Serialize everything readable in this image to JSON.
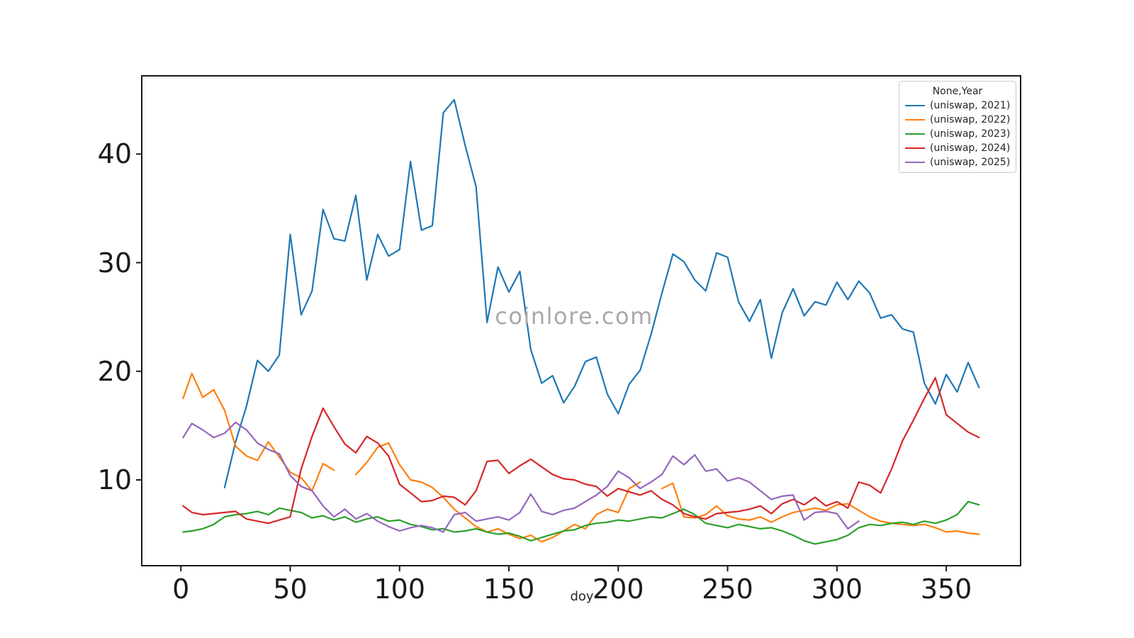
{
  "watermark": "coinlore.com",
  "colors": {
    "axis": "#1a1a1a",
    "watermark": "#a9a9a9",
    "legend_border": "#cccccc",
    "series_2021": "#1f77b4",
    "series_2022": "#ff7f0e",
    "series_2023": "#2ca02c",
    "series_2024": "#d62728",
    "series_2025": "#9467bd"
  },
  "chart_data": {
    "type": "line",
    "title": "",
    "xlabel": "doy",
    "ylabel": "",
    "grid": false,
    "xlim": [
      -17.9,
      384.0
    ],
    "ylim": [
      2.1,
      47.2
    ],
    "x_ticks": [
      0,
      50,
      100,
      150,
      200,
      250,
      300,
      350
    ],
    "y_ticks": [
      10,
      20,
      30,
      40
    ],
    "legend": {
      "title": "None,Year",
      "position": "upper right"
    },
    "x": [
      1,
      5,
      10,
      15,
      20,
      25,
      30,
      35,
      40,
      45,
      50,
      55,
      60,
      65,
      70,
      75,
      80,
      85,
      90,
      95,
      100,
      105,
      110,
      115,
      120,
      125,
      130,
      135,
      140,
      145,
      150,
      155,
      160,
      165,
      170,
      175,
      180,
      185,
      190,
      195,
      200,
      205,
      210,
      215,
      220,
      225,
      230,
      235,
      240,
      245,
      250,
      255,
      260,
      265,
      270,
      275,
      280,
      285,
      290,
      295,
      300,
      305,
      310,
      315,
      320,
      325,
      330,
      335,
      340,
      345,
      350,
      355,
      360,
      365
    ],
    "series": [
      {
        "name": "(uniswap, 2021)",
        "year": 2021,
        "color": "#1f77b4",
        "values": [
          null,
          null,
          null,
          null,
          9.3,
          13.5,
          16.8,
          21.0,
          20.0,
          21.5,
          32.6,
          25.2,
          27.4,
          34.9,
          32.2,
          32.0,
          36.2,
          28.4,
          32.6,
          30.6,
          31.2,
          39.3,
          33.0,
          33.4,
          43.8,
          45.0,
          40.8,
          37.0,
          24.5,
          29.6,
          27.3,
          29.2,
          22.0,
          18.9,
          19.6,
          17.1,
          18.6,
          20.9,
          21.3,
          17.9,
          16.1,
          18.8,
          20.1,
          23.4,
          27.2,
          30.8,
          30.1,
          28.4,
          27.4,
          30.9,
          30.5,
          26.4,
          24.6,
          26.6,
          21.2,
          25.4,
          27.6,
          25.1,
          26.4,
          26.1,
          28.2,
          26.6,
          28.3,
          27.2,
          24.9,
          25.2,
          23.9,
          23.6,
          18.9,
          17.0,
          19.7,
          18.1,
          20.8,
          18.5
        ]
      },
      {
        "name": "(uniswap, 2022)",
        "year": 2022,
        "color": "#ff7f0e",
        "values": [
          17.5,
          19.8,
          17.6,
          18.3,
          16.4,
          13.1,
          12.2,
          11.8,
          13.5,
          12.1,
          10.7,
          10.2,
          9.0,
          11.5,
          10.9,
          null,
          10.5,
          11.6,
          13.0,
          13.4,
          11.4,
          10.0,
          9.8,
          9.3,
          8.4,
          7.3,
          6.5,
          5.7,
          5.2,
          5.5,
          5.0,
          4.6,
          4.9,
          4.3,
          4.7,
          5.3,
          5.9,
          5.5,
          6.8,
          7.3,
          7.0,
          9.2,
          9.8,
          null,
          9.2,
          9.7,
          6.6,
          6.5,
          6.8,
          7.6,
          6.7,
          6.4,
          6.3,
          6.6,
          6.1,
          6.6,
          7.0,
          7.2,
          7.4,
          7.2,
          7.7,
          7.8,
          7.2,
          6.6,
          6.2,
          6.0,
          5.9,
          5.8,
          5.9,
          5.6,
          5.2,
          5.3,
          5.1,
          5.0
        ]
      },
      {
        "name": "(uniswap, 2023)",
        "year": 2023,
        "color": "#2ca02c",
        "values": [
          5.2,
          5.3,
          5.5,
          5.9,
          6.6,
          6.8,
          6.9,
          7.1,
          6.8,
          7.4,
          7.2,
          7.0,
          6.5,
          6.7,
          6.3,
          6.6,
          6.1,
          6.4,
          6.6,
          6.2,
          6.3,
          5.9,
          5.7,
          5.4,
          5.5,
          5.2,
          5.3,
          5.5,
          5.2,
          5.0,
          5.1,
          4.8,
          4.4,
          4.7,
          5.0,
          5.3,
          5.4,
          5.8,
          6.0,
          6.1,
          6.3,
          6.2,
          6.4,
          6.6,
          6.5,
          6.9,
          7.3,
          6.8,
          6.0,
          5.8,
          5.6,
          5.9,
          5.7,
          5.5,
          5.6,
          5.3,
          4.9,
          4.4,
          4.1,
          4.3,
          4.5,
          4.9,
          5.6,
          5.9,
          5.8,
          6.0,
          6.1,
          5.9,
          6.2,
          6.0,
          6.3,
          6.8,
          8.0,
          7.7
        ]
      },
      {
        "name": "(uniswap, 2024)",
        "year": 2024,
        "color": "#d62728",
        "values": [
          7.6,
          7.0,
          6.8,
          6.9,
          7.0,
          7.1,
          6.4,
          6.2,
          6.0,
          6.3,
          6.6,
          11.0,
          14.0,
          16.6,
          14.9,
          13.3,
          12.5,
          14.0,
          13.4,
          12.2,
          9.6,
          8.8,
          8.0,
          8.1,
          8.5,
          8.4,
          7.7,
          9.0,
          11.7,
          11.8,
          10.6,
          11.3,
          11.9,
          11.2,
          10.5,
          10.1,
          10.0,
          9.6,
          9.4,
          8.5,
          9.2,
          8.9,
          8.6,
          9.0,
          8.2,
          7.7,
          6.9,
          6.6,
          6.4,
          6.9,
          7.0,
          7.1,
          7.3,
          7.6,
          6.9,
          7.8,
          8.2,
          7.7,
          8.4,
          7.6,
          8.0,
          7.4,
          9.8,
          9.5,
          8.8,
          11.0,
          13.6,
          15.5,
          17.5,
          19.4,
          16.0,
          15.2,
          14.4,
          13.9
        ]
      },
      {
        "name": "(uniswap, 2025)",
        "year": 2025,
        "color": "#9467bd",
        "values": [
          13.9,
          15.2,
          14.6,
          13.9,
          14.3,
          15.3,
          14.6,
          13.4,
          12.8,
          12.4,
          10.4,
          9.4,
          9.0,
          7.6,
          6.6,
          7.3,
          6.4,
          6.9,
          6.2,
          5.7,
          5.3,
          5.6,
          5.8,
          5.6,
          5.2,
          6.8,
          7.0,
          6.2,
          6.4,
          6.6,
          6.3,
          7.0,
          8.7,
          7.1,
          6.8,
          7.2,
          7.4,
          8.0,
          8.6,
          9.4,
          10.8,
          10.2,
          9.2,
          9.8,
          10.5,
          12.2,
          11.4,
          12.3,
          10.8,
          11.0,
          9.9,
          10.2,
          9.8,
          9.0,
          8.2,
          8.5,
          8.6,
          6.3,
          7.0,
          7.1,
          6.9,
          5.5,
          6.2,
          null,
          null,
          null,
          null,
          null,
          null,
          null,
          null,
          null,
          null,
          null
        ]
      }
    ]
  }
}
